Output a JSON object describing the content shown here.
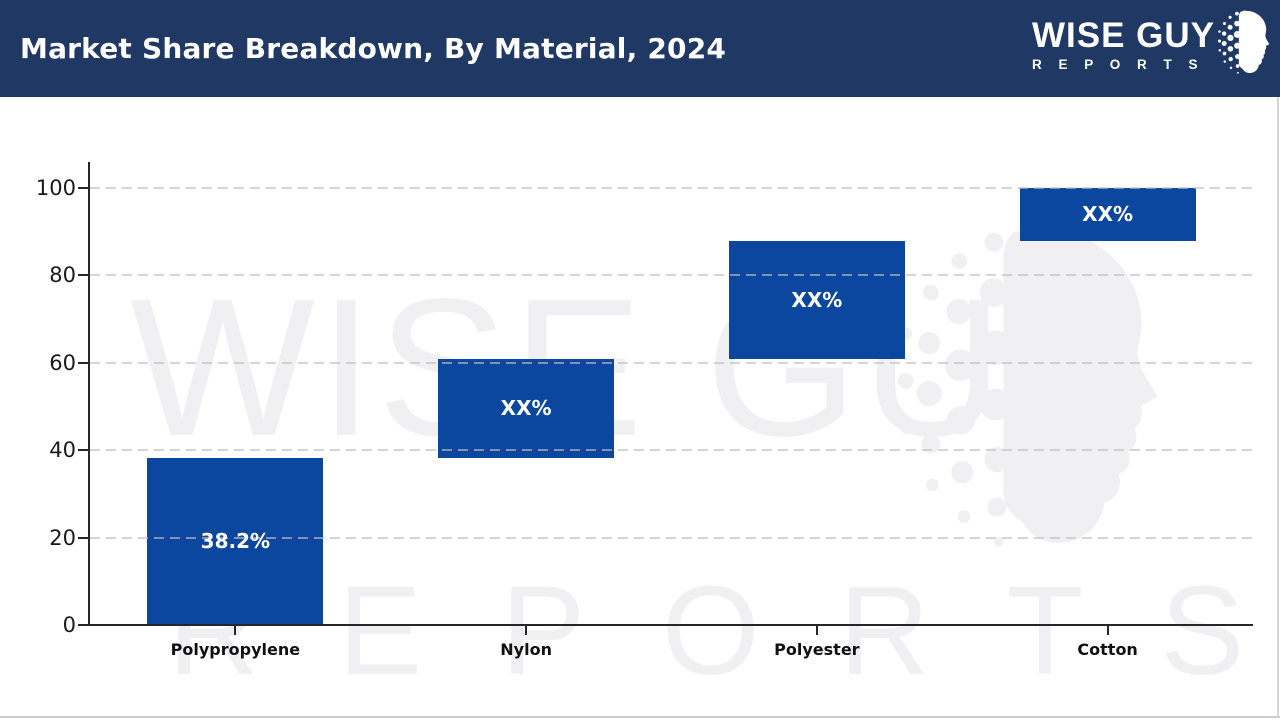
{
  "header": {
    "title": "Market Share Breakdown, By Material, 2024",
    "logo": {
      "name": "WISE GUY",
      "subname": "R E P O R T S"
    }
  },
  "watermark": {
    "line1": "WISE GUY",
    "line2": "R E P O R T S"
  },
  "chart_data": {
    "type": "bar",
    "subtype": "waterfall",
    "title": "Market Share Breakdown, By Material, 2024",
    "categories": [
      "Polypropylene",
      "Nylon",
      "Polyester",
      "Cotton"
    ],
    "segments": [
      {
        "category": "Polypropylene",
        "start": 0,
        "end": 38.2,
        "label": "38.2%"
      },
      {
        "category": "Nylon",
        "start": 38.2,
        "end": 60.8,
        "label": "XX%"
      },
      {
        "category": "Polyester",
        "start": 60.8,
        "end": 87.8,
        "label": "XX%"
      },
      {
        "category": "Cotton",
        "start": 87.8,
        "end": 100,
        "label": "XX%"
      }
    ],
    "xlabel": "",
    "ylabel": "",
    "yticks": [
      0,
      20,
      40,
      60,
      80,
      100
    ],
    "ylim": [
      0,
      105
    ],
    "grid": "horizontal-dashed",
    "legend": "none",
    "bar_color": "#0c479f",
    "value_label_color": "#ffffff"
  },
  "colors": {
    "header_bg": "#1f3864",
    "header_text": "#ffffff",
    "bar": "#0c479f",
    "axis": "#262626",
    "tick_text": "#1a1a1a",
    "grid": "#d6d6d6",
    "watermark": "#f0f0f2",
    "page_bg": "#ffffff",
    "border": "#c9ccd1"
  }
}
